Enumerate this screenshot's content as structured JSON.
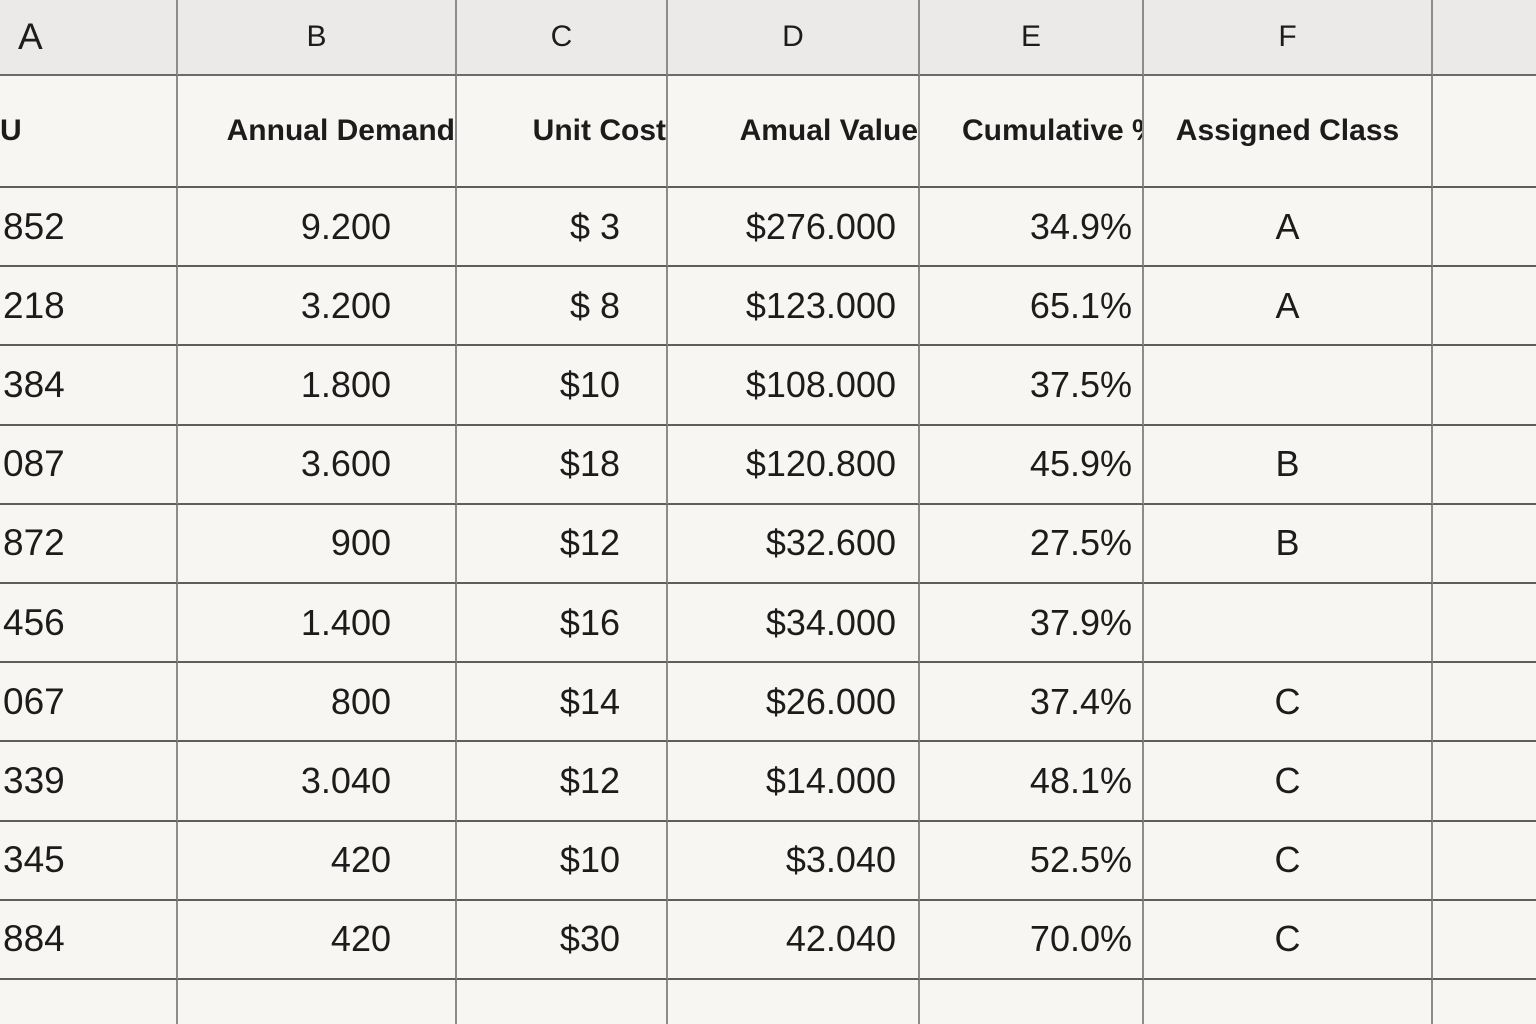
{
  "sheet": {
    "column_letters": [
      "A",
      "B",
      "C",
      "D",
      "E",
      "F"
    ],
    "headers": {
      "sku": "U",
      "demand": "Annual Demand",
      "unit_cost": "Unit Cost",
      "annual_value": "Amual Value",
      "cumulative": "Cumulative %",
      "assigned_class": "Assigned Class"
    },
    "rows": [
      {
        "sku": "852",
        "demand": "9.200",
        "unit_cost": "$ 3",
        "annual_value": "$276.000",
        "cumulative": "34.9%",
        "assigned_class": "A"
      },
      {
        "sku": "218",
        "demand": "3.200",
        "unit_cost": "$ 8",
        "annual_value": "$123.000",
        "cumulative": "65.1%",
        "assigned_class": "A"
      },
      {
        "sku": "384",
        "demand": "1.800",
        "unit_cost": "$10",
        "annual_value": "$108.000",
        "cumulative": "37.5%",
        "assigned_class": ""
      },
      {
        "sku": "087",
        "demand": "3.600",
        "unit_cost": "$18",
        "annual_value": "$120.800",
        "cumulative": "45.9%",
        "assigned_class": "B"
      },
      {
        "sku": "872",
        "demand": "900",
        "unit_cost": "$12",
        "annual_value": "$32.600",
        "cumulative": "27.5%",
        "assigned_class": "B"
      },
      {
        "sku": "456",
        "demand": "1.400",
        "unit_cost": "$16",
        "annual_value": "$34.000",
        "cumulative": "37.9%",
        "assigned_class": ""
      },
      {
        "sku": "067",
        "demand": "800",
        "unit_cost": "$14",
        "annual_value": "$26.000",
        "cumulative": "37.4%",
        "assigned_class": "C"
      },
      {
        "sku": "339",
        "demand": "3.040",
        "unit_cost": "$12",
        "annual_value": "$14.000",
        "cumulative": "48.1%",
        "assigned_class": "C"
      },
      {
        "sku": "345",
        "demand": "420",
        "unit_cost": "$10",
        "annual_value": "$3.040",
        "cumulative": "52.5%",
        "assigned_class": "C"
      },
      {
        "sku": "884",
        "demand": "420",
        "unit_cost": "$30",
        "annual_value": "42.040",
        "cumulative": "70.0%",
        "assigned_class": "C"
      }
    ],
    "colors": {
      "letter_row_bg": "#ECEAE8",
      "cell_bg": "#F8F6F3",
      "horizontal_grid_line": "#5E5E5E",
      "vertical_grid_line": "#8C8C8C",
      "text": "#1C1C1C"
    }
  }
}
